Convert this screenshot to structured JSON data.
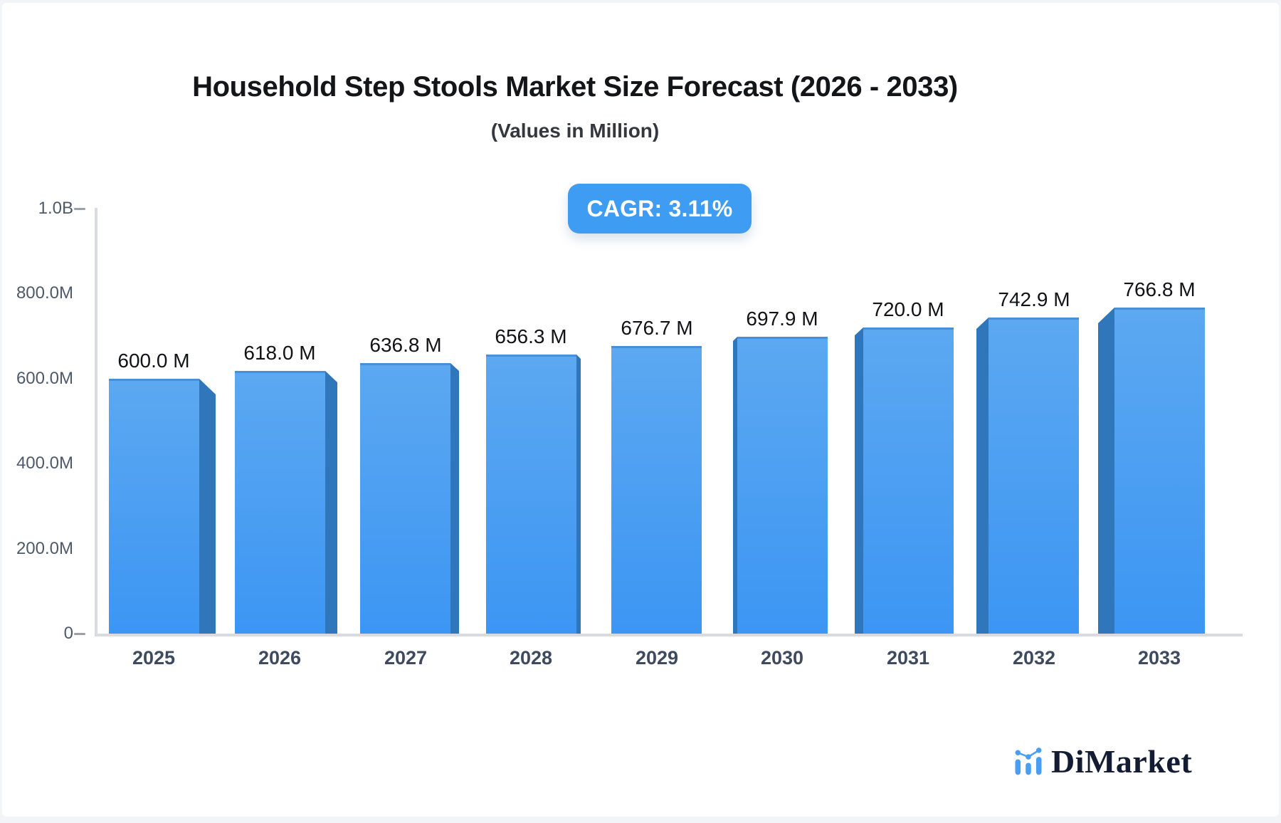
{
  "header": {
    "title": "Household Step Stools Market Size Forecast (2026 - 2033)",
    "subtitle": "(Values in Million)",
    "cagr_badge": "CAGR: 3.11%"
  },
  "chart_data": {
    "type": "bar",
    "title": "Household Step Stools Market Size Forecast (2026 - 2033)",
    "subtitle": "(Values in Million)",
    "cagr": "3.11%",
    "categories": [
      "2025",
      "2026",
      "2027",
      "2028",
      "2029",
      "2030",
      "2031",
      "2032",
      "2033"
    ],
    "values": [
      600.0,
      618.0,
      636.8,
      656.3,
      676.7,
      697.9,
      720.0,
      742.9,
      766.8
    ],
    "value_labels": [
      "600.0 M",
      "618.0 M",
      "636.8 M",
      "656.3 M",
      "676.7 M",
      "697.9 M",
      "720.0 M",
      "742.9 M",
      "766.8 M"
    ],
    "unit": "Million",
    "ylim": [
      0,
      1000
    ],
    "yticks": [
      {
        "label": "1.0B",
        "value": 1000,
        "dash": true
      },
      {
        "label": "800.0M",
        "value": 800,
        "dash": false
      },
      {
        "label": "600.0M",
        "value": 600,
        "dash": false
      },
      {
        "label": "400.0M",
        "value": 400,
        "dash": false
      },
      {
        "label": "200.0M",
        "value": 200,
        "dash": false
      },
      {
        "label": "0",
        "value": 0,
        "dash": true
      }
    ],
    "grid": false,
    "legend": false,
    "colors": {
      "accent": "#3e9cf2",
      "bar_gradient_top": "#5ca8f1",
      "bar_gradient_bottom": "#3c96f3",
      "bar_side": "#2f77ba",
      "bar_top_edge": "#4a8fd6",
      "logo_blue": "#479ef3"
    }
  },
  "logo": {
    "text": "DiMarket"
  }
}
